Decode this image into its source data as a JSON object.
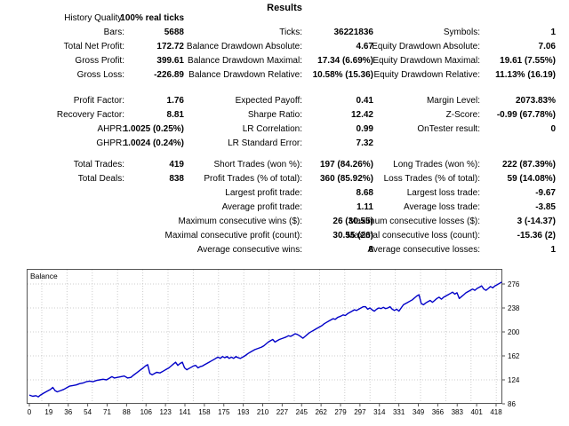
{
  "title": "Results",
  "stats": {
    "rows": [
      {
        "cells": [
          "History Quality:",
          "100% real ticks",
          "",
          "",
          "",
          ""
        ]
      },
      {
        "cells": [
          "Bars:",
          "5688",
          "Ticks:",
          "36221836",
          "Symbols:",
          "1"
        ]
      },
      {
        "cells": [
          "Total Net Profit:",
          "172.72",
          "Balance Drawdown Absolute:",
          "4.67",
          "Equity Drawdown Absolute:",
          "7.06"
        ]
      },
      {
        "cells": [
          "Gross Profit:",
          "399.61",
          "Balance Drawdown Maximal:",
          "17.34 (6.69%)",
          "Equity Drawdown Maximal:",
          "19.61 (7.55%)"
        ]
      },
      {
        "cells": [
          "Gross Loss:",
          "-226.89",
          "Balance Drawdown Relative:",
          "10.58% (15.36)",
          "Equity Drawdown Relative:",
          "11.13% (16.19)"
        ]
      },
      {
        "spacer": 13
      },
      {
        "cells": [
          "Profit Factor:",
          "1.76",
          "Expected Payoff:",
          "0.41",
          "Margin Level:",
          "2073.83%"
        ]
      },
      {
        "cells": [
          "Recovery Factor:",
          "8.81",
          "Sharpe Ratio:",
          "12.42",
          "Z-Score:",
          "-0.99 (67.78%)"
        ]
      },
      {
        "cells": [
          "AHPR:",
          "1.0025 (0.25%)",
          "LR Correlation:",
          "0.99",
          "OnTester result:",
          "0"
        ]
      },
      {
        "cells": [
          "GHPR:",
          "1.0024 (0.24%)",
          "LR Standard Error:",
          "7.32",
          "",
          ""
        ]
      },
      {
        "spacer": 8
      },
      {
        "cells": [
          "Total Trades:",
          "419",
          "Short Trades (won %):",
          "197 (84.26%)",
          "Long Trades (won %):",
          "222 (87.39%)"
        ]
      },
      {
        "cells": [
          "Total Deals:",
          "838",
          "Profit Trades (% of total):",
          "360 (85.92%)",
          "Loss Trades (% of total):",
          "59 (14.08%)"
        ]
      },
      {
        "cells": [
          "",
          "",
          "Largest profit trade:",
          "8.68",
          "Largest loss trade:",
          "-9.67"
        ]
      },
      {
        "cells": [
          "",
          "",
          "Average profit trade:",
          "1.11",
          "Average loss trade:",
          "-3.85"
        ]
      },
      {
        "cells": [
          "",
          "",
          "Maximum consecutive wins ($):",
          "26 (30.55)",
          "Maximum consecutive losses ($):",
          "3 (-14.37)"
        ]
      },
      {
        "cells": [
          "",
          "",
          "Maximal consecutive profit (count):",
          "30.55 (26)",
          "Maximal consecutive loss (count):",
          "-15.36 (2)"
        ]
      },
      {
        "cells": [
          "",
          "",
          "Average consecutive wins:",
          "8",
          "Average consecutive losses:",
          "1"
        ]
      }
    ]
  },
  "chart_data": {
    "type": "line",
    "title": "Balance",
    "series_name": "Balance",
    "line_color": "#0000C8",
    "grid": true,
    "xlim": [
      0,
      424
    ],
    "ylim": [
      86,
      300
    ],
    "x_tick_labels": [
      "0",
      "19",
      "36",
      "54",
      "71",
      "88",
      "106",
      "123",
      "141",
      "158",
      "175",
      "193",
      "210",
      "227",
      "245",
      "262",
      "279",
      "297",
      "314",
      "331",
      "349",
      "366",
      "383",
      "401",
      "418"
    ],
    "y_ticks": [
      86,
      124,
      162,
      200,
      238,
      276
    ],
    "points": [
      [
        0,
        100
      ],
      [
        3,
        98
      ],
      [
        6,
        99
      ],
      [
        8,
        97
      ],
      [
        10,
        100
      ],
      [
        13,
        103
      ],
      [
        16,
        106
      ],
      [
        19,
        109
      ],
      [
        21,
        112
      ],
      [
        23,
        107
      ],
      [
        25,
        105
      ],
      [
        28,
        107
      ],
      [
        31,
        109
      ],
      [
        34,
        112
      ],
      [
        36,
        114
      ],
      [
        39,
        115
      ],
      [
        42,
        116
      ],
      [
        45,
        118
      ],
      [
        48,
        119
      ],
      [
        51,
        121
      ],
      [
        54,
        122
      ],
      [
        57,
        121
      ],
      [
        60,
        123
      ],
      [
        63,
        124
      ],
      [
        66,
        125
      ],
      [
        69,
        124
      ],
      [
        71,
        126
      ],
      [
        74,
        129
      ],
      [
        76,
        127
      ],
      [
        79,
        128
      ],
      [
        82,
        129
      ],
      [
        85,
        130
      ],
      [
        88,
        127
      ],
      [
        91,
        128
      ],
      [
        93,
        131
      ],
      [
        96,
        135
      ],
      [
        99,
        139
      ],
      [
        102,
        143
      ],
      [
        104,
        146
      ],
      [
        106,
        148
      ],
      [
        108,
        134
      ],
      [
        110,
        132
      ],
      [
        112,
        134
      ],
      [
        114,
        136
      ],
      [
        117,
        135
      ],
      [
        119,
        137
      ],
      [
        121,
        139
      ],
      [
        123,
        141
      ],
      [
        125,
        143
      ],
      [
        127,
        146
      ],
      [
        129,
        149
      ],
      [
        131,
        152
      ],
      [
        133,
        147
      ],
      [
        135,
        150
      ],
      [
        137,
        152
      ],
      [
        139,
        143
      ],
      [
        141,
        140
      ],
      [
        143,
        142
      ],
      [
        145,
        144
      ],
      [
        147,
        146
      ],
      [
        149,
        147
      ],
      [
        151,
        143
      ],
      [
        153,
        145
      ],
      [
        155,
        146
      ],
      [
        157,
        148
      ],
      [
        159,
        150
      ],
      [
        161,
        152
      ],
      [
        163,
        154
      ],
      [
        165,
        156
      ],
      [
        167,
        158
      ],
      [
        169,
        160
      ],
      [
        171,
        158
      ],
      [
        173,
        161
      ],
      [
        175,
        159
      ],
      [
        177,
        161
      ],
      [
        179,
        158
      ],
      [
        181,
        160
      ],
      [
        183,
        158
      ],
      [
        185,
        161
      ],
      [
        187,
        159
      ],
      [
        189,
        158
      ],
      [
        191,
        160
      ],
      [
        193,
        162
      ],
      [
        196,
        166
      ],
      [
        199,
        169
      ],
      [
        202,
        172
      ],
      [
        205,
        174
      ],
      [
        208,
        176
      ],
      [
        210,
        178
      ],
      [
        212,
        181
      ],
      [
        214,
        184
      ],
      [
        216,
        186
      ],
      [
        218,
        188
      ],
      [
        220,
        184
      ],
      [
        222,
        186
      ],
      [
        224,
        188
      ],
      [
        227,
        190
      ],
      [
        230,
        192
      ],
      [
        232,
        194
      ],
      [
        234,
        193
      ],
      [
        236,
        195
      ],
      [
        238,
        197
      ],
      [
        240,
        196
      ],
      [
        242,
        194
      ],
      [
        245,
        190
      ],
      [
        247,
        193
      ],
      [
        249,
        196
      ],
      [
        251,
        199
      ],
      [
        253,
        201
      ],
      [
        255,
        203
      ],
      [
        257,
        205
      ],
      [
        259,
        207
      ],
      [
        262,
        210
      ],
      [
        264,
        213
      ],
      [
        266,
        215
      ],
      [
        268,
        217
      ],
      [
        270,
        219
      ],
      [
        272,
        221
      ],
      [
        274,
        220
      ],
      [
        276,
        223
      ],
      [
        279,
        225
      ],
      [
        281,
        227
      ],
      [
        283,
        226
      ],
      [
        285,
        229
      ],
      [
        287,
        231
      ],
      [
        289,
        233
      ],
      [
        291,
        235
      ],
      [
        293,
        234
      ],
      [
        295,
        236
      ],
      [
        297,
        238
      ],
      [
        299,
        240
      ],
      [
        301,
        240
      ],
      [
        303,
        236
      ],
      [
        305,
        238
      ],
      [
        307,
        235
      ],
      [
        309,
        233
      ],
      [
        311,
        236
      ],
      [
        313,
        238
      ],
      [
        315,
        237
      ],
      [
        317,
        239
      ],
      [
        319,
        237
      ],
      [
        321,
        238
      ],
      [
        323,
        240
      ],
      [
        325,
        236
      ],
      [
        327,
        234
      ],
      [
        329,
        236
      ],
      [
        331,
        233
      ],
      [
        333,
        238
      ],
      [
        335,
        243
      ],
      [
        337,
        245
      ],
      [
        339,
        247
      ],
      [
        341,
        249
      ],
      [
        343,
        251
      ],
      [
        345,
        254
      ],
      [
        347,
        257
      ],
      [
        349,
        259
      ],
      [
        351,
        245
      ],
      [
        353,
        243
      ],
      [
        355,
        246
      ],
      [
        357,
        248
      ],
      [
        359,
        250
      ],
      [
        361,
        247
      ],
      [
        363,
        250
      ],
      [
        365,
        253
      ],
      [
        367,
        255
      ],
      [
        369,
        252
      ],
      [
        371,
        255
      ],
      [
        373,
        257
      ],
      [
        375,
        259
      ],
      [
        377,
        261
      ],
      [
        379,
        263
      ],
      [
        381,
        260
      ],
      [
        383,
        262
      ],
      [
        385,
        253
      ],
      [
        387,
        256
      ],
      [
        389,
        259
      ],
      [
        391,
        262
      ],
      [
        393,
        264
      ],
      [
        395,
        266
      ],
      [
        397,
        268
      ],
      [
        399,
        266
      ],
      [
        401,
        269
      ],
      [
        403,
        271
      ],
      [
        405,
        273
      ],
      [
        407,
        268
      ],
      [
        409,
        266
      ],
      [
        411,
        269
      ],
      [
        413,
        272
      ],
      [
        415,
        270
      ],
      [
        417,
        273
      ],
      [
        419,
        275
      ],
      [
        421,
        277
      ],
      [
        423,
        279
      ]
    ]
  }
}
